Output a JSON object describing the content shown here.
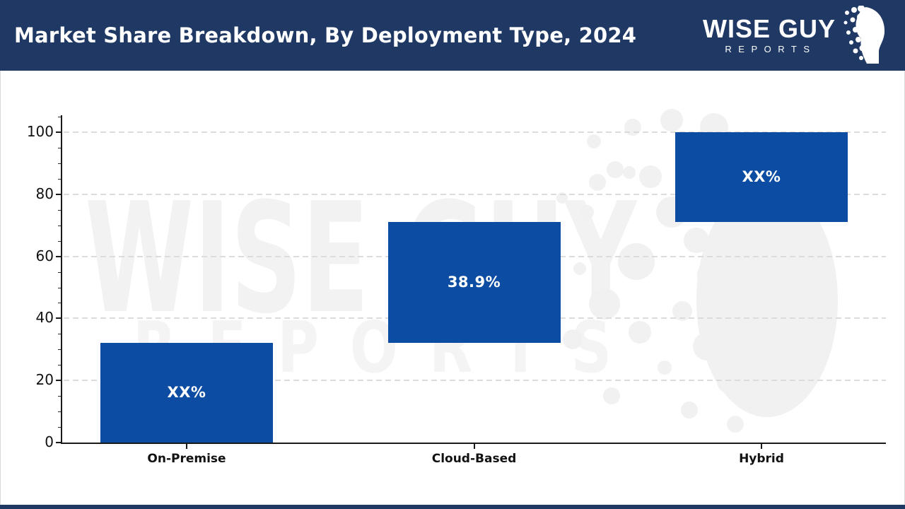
{
  "header": {
    "title": "Market Share Breakdown, By Deployment Type, 2024",
    "brand": {
      "line1": "WISE GUY",
      "line2": "REPORTS"
    }
  },
  "watermark": {
    "line1": "WISE GUY",
    "line2": "REPORTS"
  },
  "colors": {
    "header_navy": "#1f3864",
    "bar_blue": "#0c4ca2",
    "grid_gray": "#dcdcdc",
    "axis_black": "#1a1a1a",
    "watermark_gray": "#f2f2f2"
  },
  "chart_data": {
    "type": "bar",
    "variant": "floating-segment-waterfall",
    "title": "Market Share Breakdown, By Deployment Type, 2024",
    "categories": [
      "On-Premise",
      "Cloud-Based",
      "Hybrid"
    ],
    "segments": [
      {
        "category": "On-Premise",
        "start": 0,
        "end": 32.2,
        "value_label": "XX%"
      },
      {
        "category": "Cloud-Based",
        "start": 32.2,
        "end": 71.1,
        "value_label": "38.9%"
      },
      {
        "category": "Hybrid",
        "start": 71.1,
        "end": 100,
        "value_label": "XX%"
      }
    ],
    "yticks": [
      0,
      20,
      40,
      60,
      80,
      100
    ],
    "minor_tick_step": 5,
    "ylim": [
      0,
      105.5
    ],
    "xlabel": "",
    "ylabel": "",
    "grid": "horizontal-dashed",
    "legend": "none",
    "bar_color": "#0c4ca2",
    "bar_label_color": "#ffffff"
  }
}
